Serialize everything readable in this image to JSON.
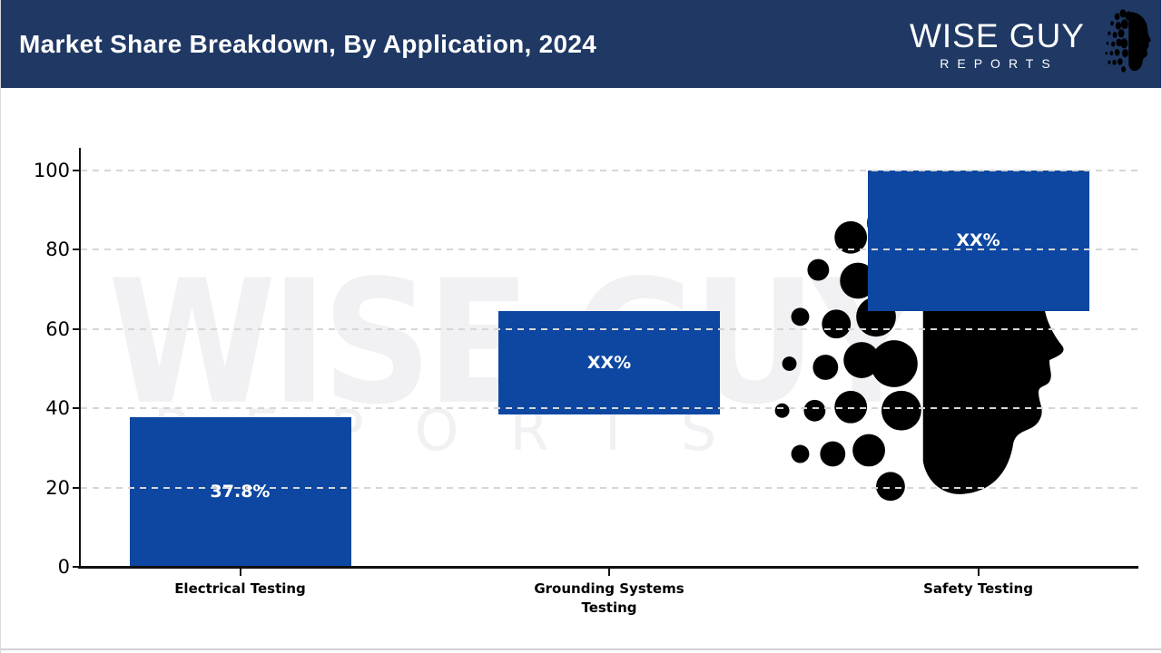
{
  "header": {
    "title": "Market Share Breakdown, By Application, 2024"
  },
  "logo": {
    "wordmark": "WISE GUY",
    "subtext": "REPORTS"
  },
  "watermark": {
    "wordmark": "WISE GUY",
    "subtext": "REPORTS"
  },
  "chart_data": {
    "type": "bar",
    "subtype": "floating-segment-waterfall",
    "title": "Market Share Breakdown, By Application, 2024",
    "categories": [
      "Electrical Testing",
      "Grounding Systems Testing",
      "Safety Testing"
    ],
    "category_label_lines": [
      [
        "Electrical Testing"
      ],
      [
        "Grounding Systems",
        "Testing"
      ],
      [
        "Safety Testing"
      ]
    ],
    "segments": [
      {
        "category": "Electrical Testing",
        "start": 0,
        "end": 37.8,
        "label": "37.8%"
      },
      {
        "category": "Grounding Systems Testing",
        "start": 38.3,
        "end": 64.4,
        "label": "XX%"
      },
      {
        "category": "Safety Testing",
        "start": 64.5,
        "end": 100,
        "label": "XX%"
      }
    ],
    "xlabel": "",
    "ylabel": "",
    "ylim": [
      0,
      100
    ],
    "yticks": [
      0,
      20,
      40,
      60,
      80,
      100
    ],
    "grid": "dashed-horizontal",
    "legend": "none",
    "bar_color": "#0d47a1",
    "bar_label_color": "#ffffff"
  },
  "colors": {
    "header_bg": "#1f3864",
    "bar": "#0d47a1",
    "gridline": "#d6d6d6",
    "axis": "#111111",
    "watermark": "#f1f1f4"
  }
}
